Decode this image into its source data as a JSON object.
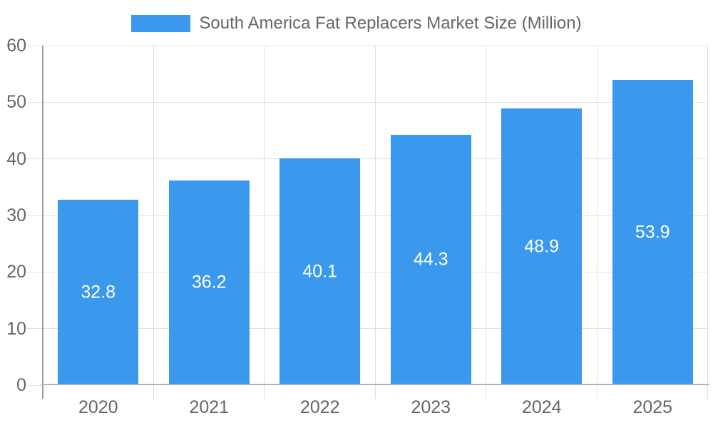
{
  "legend": {
    "position": "top",
    "items": [
      {
        "label": "South America Fat Replacers Market Size (Million)",
        "swatch_color": "#3a99ec"
      }
    ]
  },
  "chart_data": {
    "type": "bar",
    "title": "South America Fat Replacers Market Size (Million)",
    "categories": [
      "2020",
      "2021",
      "2022",
      "2023",
      "2024",
      "2025"
    ],
    "values": [
      32.8,
      36.2,
      40.1,
      44.3,
      48.9,
      53.9
    ],
    "value_labels": [
      "32.8",
      "36.2",
      "40.1",
      "44.3",
      "48.9",
      "53.9"
    ],
    "xlabel": "",
    "ylabel": "",
    "ylim": [
      0,
      60
    ],
    "yticks": [
      0,
      10,
      20,
      30,
      40,
      50,
      60
    ],
    "grid": true,
    "legend_position": "top",
    "bar_color": "#3a99ec",
    "value_label_color": "#ffffff",
    "axis_text_color": "#666666",
    "grid_color": "#e2e2e2",
    "y_axis_line_color": "#9e9e9e",
    "x_axis_line_color": "#b3b3b3"
  }
}
